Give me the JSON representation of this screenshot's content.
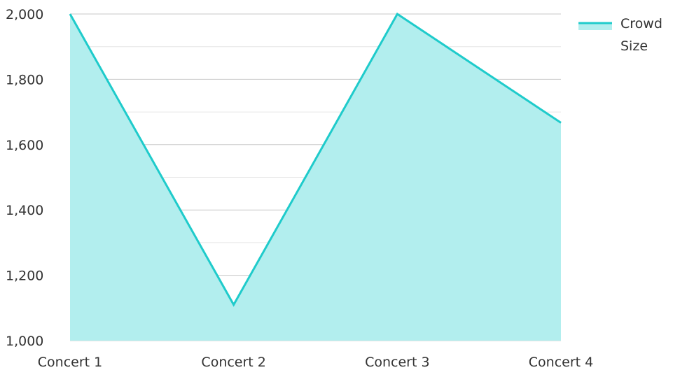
{
  "colors": {
    "line": "#1fcbcb",
    "fill": "#b2eeee",
    "grid_major": "#c8c8c8",
    "grid_minor": "#e6e6e6",
    "text": "#333333"
  },
  "chart_data": {
    "type": "area",
    "title": "",
    "xlabel": "",
    "ylabel": "",
    "categories": [
      "Concert 1",
      "Concert 2",
      "Concert 3",
      "Concert 4"
    ],
    "series": [
      {
        "name": "Crowd Size",
        "values": [
          2000,
          1110,
          2000,
          1667
        ]
      }
    ],
    "ylim": [
      1000,
      2000
    ],
    "y_ticks": [
      "1,000",
      "1,200",
      "1,400",
      "1,600",
      "1,800",
      "2,000"
    ],
    "grid": true,
    "legend": {
      "position": "top-right",
      "lines": [
        "Crowd",
        "Size"
      ]
    }
  }
}
